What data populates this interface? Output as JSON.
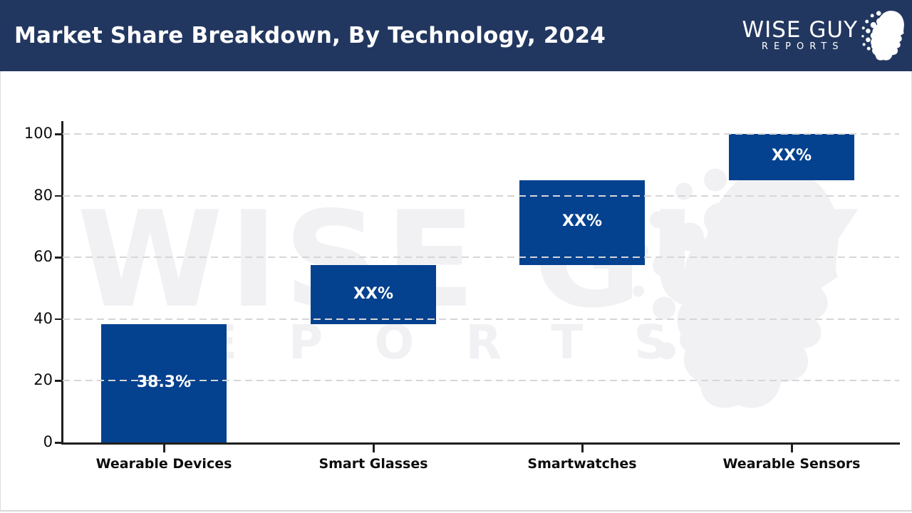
{
  "header": {
    "title": "Market Share Breakdown, By Technology, 2024",
    "logo": {
      "line1": "WISE GUY",
      "line2": "REPORTS"
    }
  },
  "watermark": {
    "line1": "WISE GUY",
    "line2": "REPORTS"
  },
  "chart_data": {
    "type": "bar",
    "subtype": "floating-waterfall",
    "title": "Market Share Breakdown, By Technology, 2024",
    "xlabel": "",
    "ylabel": "",
    "ylim": [
      0,
      100
    ],
    "yticks": [
      0,
      20,
      40,
      60,
      80,
      100
    ],
    "grid": "horizontal dashed, drawn above bars",
    "legend": "none",
    "categories": [
      "Wearable Devices",
      "Smart Glasses",
      "Smartwatches",
      "Wearable Sensors"
    ],
    "bars": [
      {
        "category": "Wearable Devices",
        "start": 0,
        "end": 38.3,
        "label": "38.3%"
      },
      {
        "category": "Smart Glasses",
        "start": 38.3,
        "end": 57.5,
        "label": "XX%"
      },
      {
        "category": "Smartwatches",
        "start": 57.5,
        "end": 85,
        "label": "XX%"
      },
      {
        "category": "Wearable Sensors",
        "start": 85,
        "end": 100,
        "label": "XX%"
      }
    ]
  },
  "colors": {
    "header_bg": "#223760",
    "bar": "#04418f",
    "bar_label": "#ffffff",
    "grid": "#d6d6d6",
    "axis": "#1f1f1f",
    "tick_text": "#0d0d0d",
    "watermark": "#f1f1f4"
  }
}
